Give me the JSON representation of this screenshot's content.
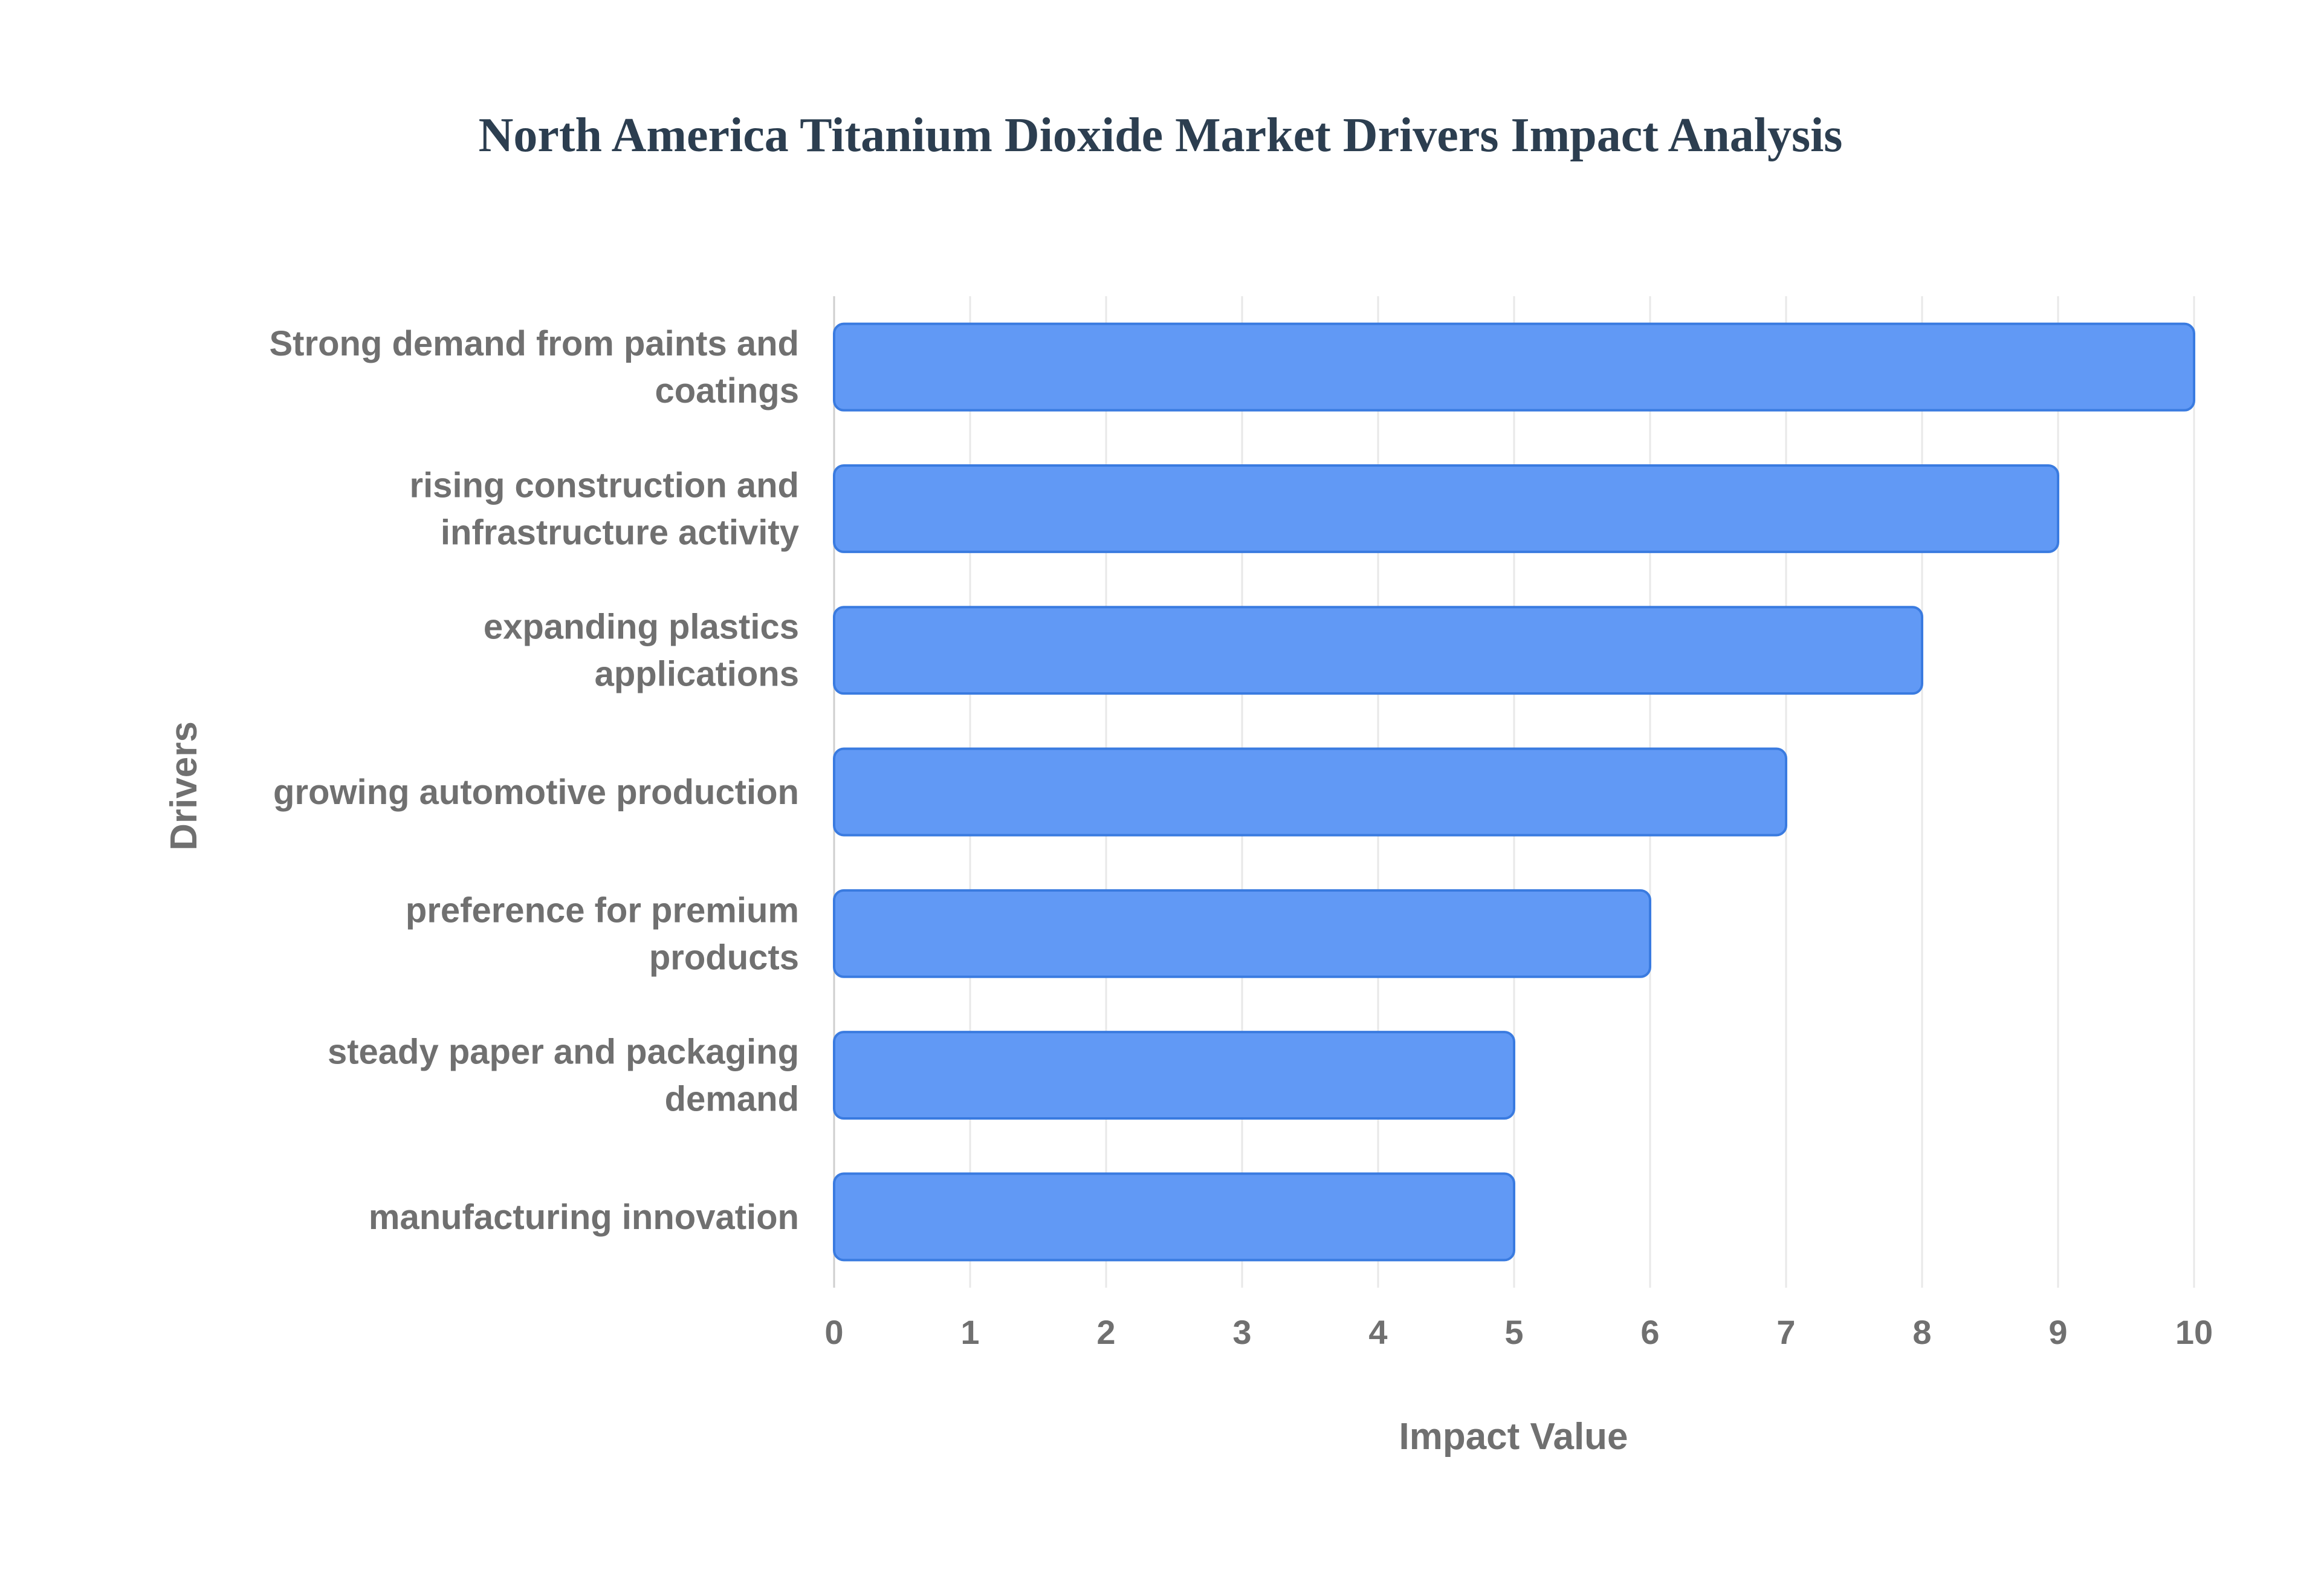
{
  "colors": {
    "bar_fill": "#6199f5",
    "bar_stroke": "#3a7be0",
    "title": "#2c3e50",
    "label": "#707070",
    "grid": "#e8e8e8",
    "axis": "#cfcfcf"
  },
  "chart_data": {
    "type": "bar",
    "orientation": "horizontal",
    "title": "North America Titanium Dioxide Market Drivers Impact Analysis",
    "xlabel": "Impact Value",
    "ylabel": "Drivers",
    "xlim": [
      0,
      10
    ],
    "xticks": [
      "0",
      "1",
      "2",
      "3",
      "4",
      "5",
      "6",
      "7",
      "8",
      "9",
      "10"
    ],
    "grid": true,
    "categories": [
      [
        "Strong demand from paints and",
        "coatings"
      ],
      [
        "rising construction and",
        "infrastructure activity"
      ],
      [
        "expanding plastics",
        "applications"
      ],
      [
        "growing automotive production"
      ],
      [
        "preference for premium",
        "products"
      ],
      [
        "steady paper and packaging",
        "demand"
      ],
      [
        "manufacturing innovation"
      ]
    ],
    "values": [
      10,
      9,
      8,
      7,
      6,
      5,
      5
    ]
  }
}
